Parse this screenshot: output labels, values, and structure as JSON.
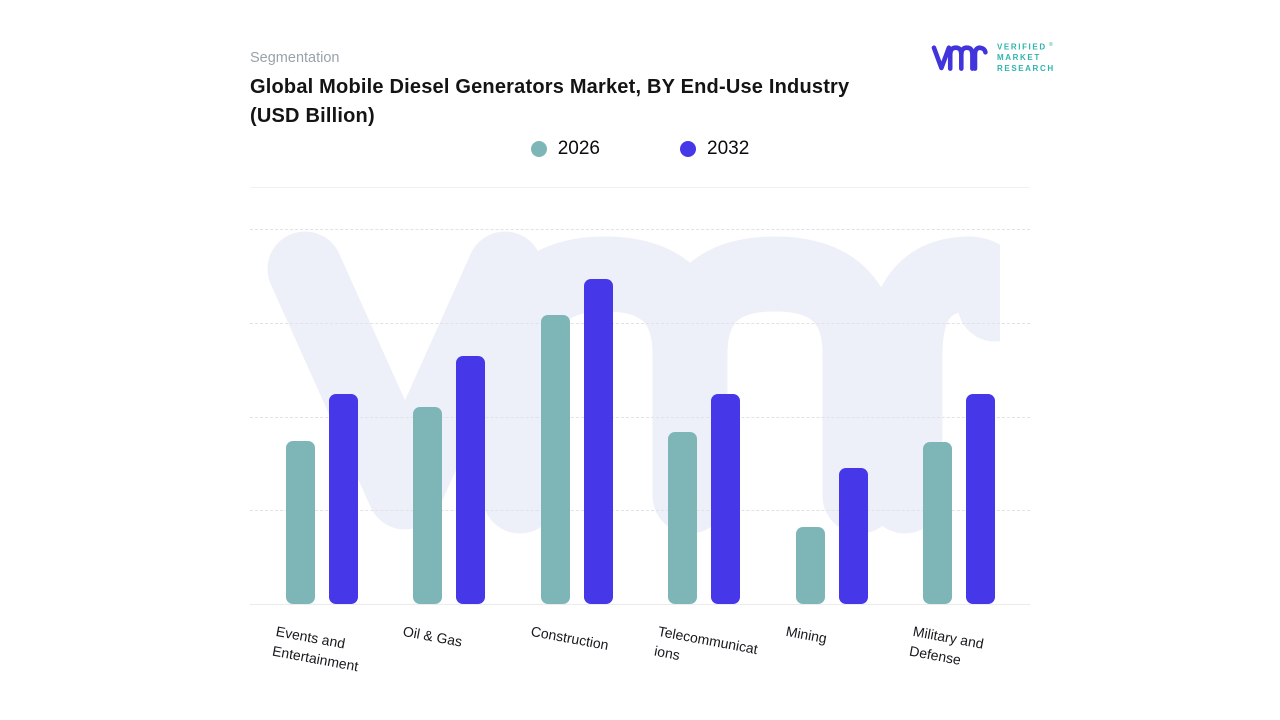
{
  "header": {
    "eyebrow": "Segmentation",
    "title": "Global Mobile Diesel Generators Market, BY End-Use Industry (USD Billion)"
  },
  "brand": {
    "lines": [
      "VERIFIED",
      "MARKET",
      "RESEARCH"
    ],
    "registered_mark": "®",
    "glyph_color": "#4134dc",
    "text_color": "#2fb4ad"
  },
  "legend": {
    "items": [
      {
        "label": "2026",
        "color": "#7eb6b8"
      },
      {
        "label": "2032",
        "color": "#4638e8"
      }
    ]
  },
  "chart_data": {
    "type": "bar",
    "title": "Global Mobile Diesel Generators Market, BY End-Use Industry (USD Billion)",
    "categories": [
      "Events and Entertainment",
      "Oil & Gas",
      "Construction",
      "Telecommunications",
      "Mining",
      "Military and Defense"
    ],
    "category_display_lines": [
      [
        "Events and",
        "Entertainment"
      ],
      [
        "Oil & Gas"
      ],
      [
        "Construction"
      ],
      [
        "Telecommunicat",
        "ions"
      ],
      [
        "Mining"
      ],
      [
        "Military and",
        "Defense"
      ]
    ],
    "series": [
      {
        "name": "2026",
        "color": "#7eb6b8",
        "values": [
          1.74,
          2.1,
          3.08,
          1.83,
          0.82,
          1.73
        ]
      },
      {
        "name": "2032",
        "color": "#4638e8",
        "values": [
          2.24,
          2.65,
          3.47,
          2.24,
          1.45,
          2.24
        ]
      }
    ],
    "xlabel": "",
    "ylabel": "",
    "ylim": [
      0,
      4.44
    ],
    "y_axis_labels_visible": false,
    "gridlines": {
      "visible": true,
      "style": "dashed",
      "count": 4
    },
    "legend_position": "top",
    "note": "Y-axis is unlabeled in source; values estimated in gridline units (1 unit = one gridline interval)."
  },
  "watermark": {
    "name": "vmr-watermark",
    "color": "#eef0f9"
  }
}
